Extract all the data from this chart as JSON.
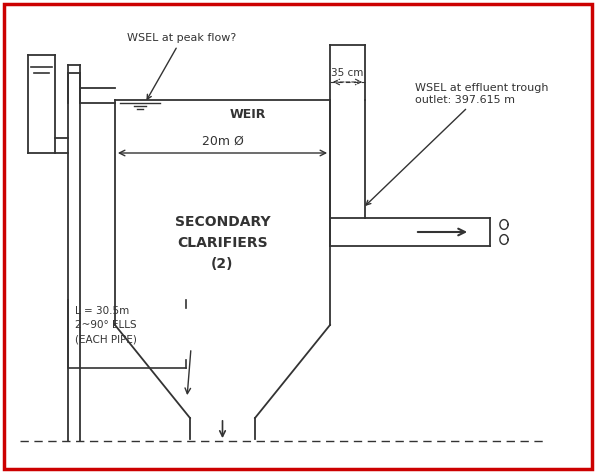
{
  "bg_color": "#ffffff",
  "line_color": "#333333",
  "border_color": "#cc0000",
  "fig_width": 5.96,
  "fig_height": 4.73,
  "labels": {
    "wsel_peak": "WSEL at peak flow?",
    "weir": "WEIR",
    "cm35": "35 cm",
    "wsel_effluent": "WSEL at effluent trough\noutlet: 397.615 m",
    "diameter": "20m Ø",
    "secondary": "SECONDARY\nCLARIFIERS\n(2)",
    "pipe_info": "L = 30.5m\n2~90° ELLS\n(EACH PIPE)"
  }
}
